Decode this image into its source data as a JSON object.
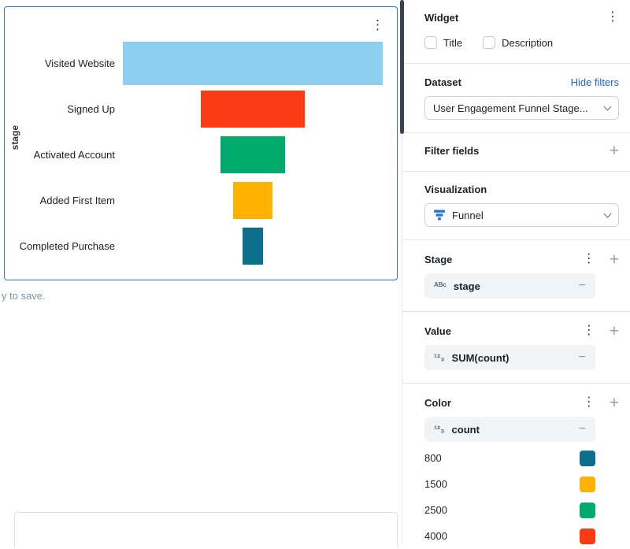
{
  "chart_card": {
    "kebab_icon": "⋮",
    "note_fragment": "y to save."
  },
  "chart_data": {
    "type": "funnel",
    "title": "",
    "ylabel": "stage",
    "categories": [
      "Visited Website",
      "Signed Up",
      "Activated Account",
      "Added First Item",
      "Completed Purchase"
    ],
    "values": [
      10000,
      4000,
      2500,
      1500,
      800
    ],
    "colors": [
      "#8CCFF0",
      "#FA3B16",
      "#00AB6E",
      "#FFB300",
      "#0E6F8D"
    ],
    "grid": false,
    "legend_position": "none"
  },
  "sidebar": {
    "widget": {
      "title": "Widget",
      "kebab_icon": "⋮",
      "checkboxes": [
        {
          "label": "Title",
          "checked": false
        },
        {
          "label": "Description",
          "checked": false
        }
      ]
    },
    "dataset": {
      "label": "Dataset",
      "link_label": "Hide filters",
      "selected_value": "User Engagement Funnel Stage...",
      "link_color": "#2065d1"
    },
    "filter_fields": {
      "label": "Filter fields",
      "add_icon": "+"
    },
    "visualization": {
      "label": "Visualization",
      "selected_value": "Funnel",
      "icon": "funnel-icon",
      "icon_color": "#2479d2"
    },
    "field_sections": [
      {
        "label": "Stage",
        "field_name": "stage",
        "field_icon": "abc-field-icon"
      },
      {
        "label": "Value",
        "field_name": "SUM(count)",
        "field_icon": "123-field-icon"
      },
      {
        "label": "Color",
        "field_name": "count",
        "field_icon": "123-field-icon"
      }
    ],
    "color_legend": [
      {
        "value": "800",
        "color": "#0E6F8D"
      },
      {
        "value": "1500",
        "color": "#FFB300"
      },
      {
        "value": "2500",
        "color": "#00AB6E"
      },
      {
        "value": "4000",
        "color": "#FA3B16"
      }
    ]
  }
}
